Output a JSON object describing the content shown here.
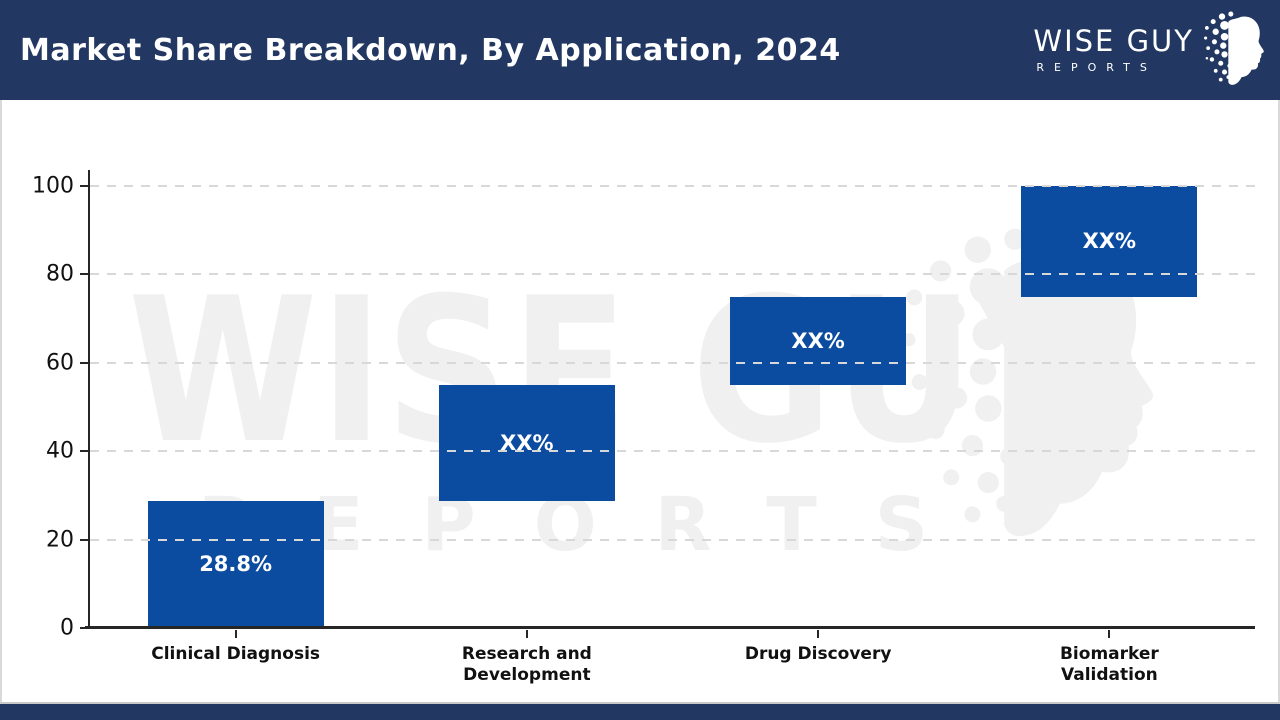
{
  "header": {
    "title": "Market Share Breakdown, By Application, 2024",
    "logo": {
      "name": "WISE GUY",
      "tagline": "REPORTS"
    }
  },
  "watermark": {
    "name": "WISE GUY",
    "tagline": "REPORTS"
  },
  "chart_data": {
    "type": "bar",
    "variant": "floating-waterfall",
    "title": "Market Share Breakdown, By Application, 2024",
    "categories": [
      "Clinical Diagnosis",
      "Research and\nDevelopment",
      "Drug Discovery",
      "Biomarker\nValidation"
    ],
    "bars": [
      {
        "category": "Clinical Diagnosis",
        "start": 0,
        "end": 28.8,
        "label": "28.8%"
      },
      {
        "category": "Research and Development",
        "start": 28.8,
        "end": 55,
        "label": "XX%"
      },
      {
        "category": "Drug Discovery",
        "start": 55,
        "end": 75,
        "label": "XX%"
      },
      {
        "category": "Biomarker Validation",
        "start": 75,
        "end": 100,
        "label": "XX%"
      }
    ],
    "ylim": [
      0,
      100
    ],
    "yticks": [
      0,
      20,
      40,
      60,
      80,
      100
    ],
    "grid": "horizontal-dashed",
    "legend": "none",
    "bar_color": "#0c4ca0",
    "bar_label_color": "#ffffff"
  },
  "colors": {
    "header_bg": "#223862",
    "footer_bg": "#223862",
    "axis": "#262626",
    "gridline": "#d8d8d8",
    "watermark": "#f0f0f0",
    "card_border": "#d9d9d9"
  }
}
